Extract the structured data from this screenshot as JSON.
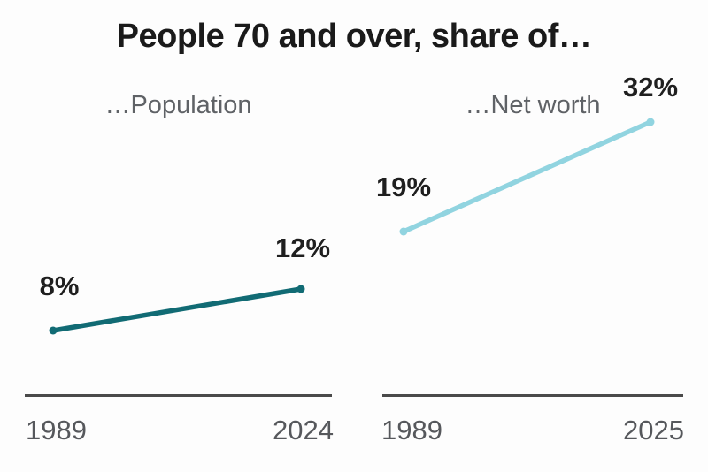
{
  "header": {
    "title": "People 70 and over, share of…"
  },
  "colors": {
    "population_line": "#116b74",
    "net_worth_line": "#91d4e0",
    "axis": "#4a4a4a",
    "title_text": "#1a1a1a",
    "subtitle_text": "#5f6266",
    "tick_text": "#56585c"
  },
  "chart_data": [
    {
      "type": "line",
      "subtitle": "…Population",
      "x": [
        "1989",
        "2024"
      ],
      "values": [
        8,
        12
      ],
      "point_labels": [
        "8%",
        "12%"
      ],
      "xticklabels": [
        "1989",
        "2024"
      ],
      "line_color": "#116b74",
      "axis_color": "#4a4a4a",
      "ylabel": "",
      "xlabel": "",
      "grid": "off",
      "legend": "none"
    },
    {
      "type": "line",
      "subtitle": "…Net worth",
      "x": [
        "1989",
        "2025"
      ],
      "values": [
        19,
        32
      ],
      "point_labels": [
        "19%",
        "32%"
      ],
      "xticklabels": [
        "1989",
        "2025"
      ],
      "line_color": "#91d4e0",
      "axis_color": "#4a4a4a",
      "ylabel": "",
      "xlabel": "",
      "grid": "off",
      "legend": "none"
    }
  ]
}
